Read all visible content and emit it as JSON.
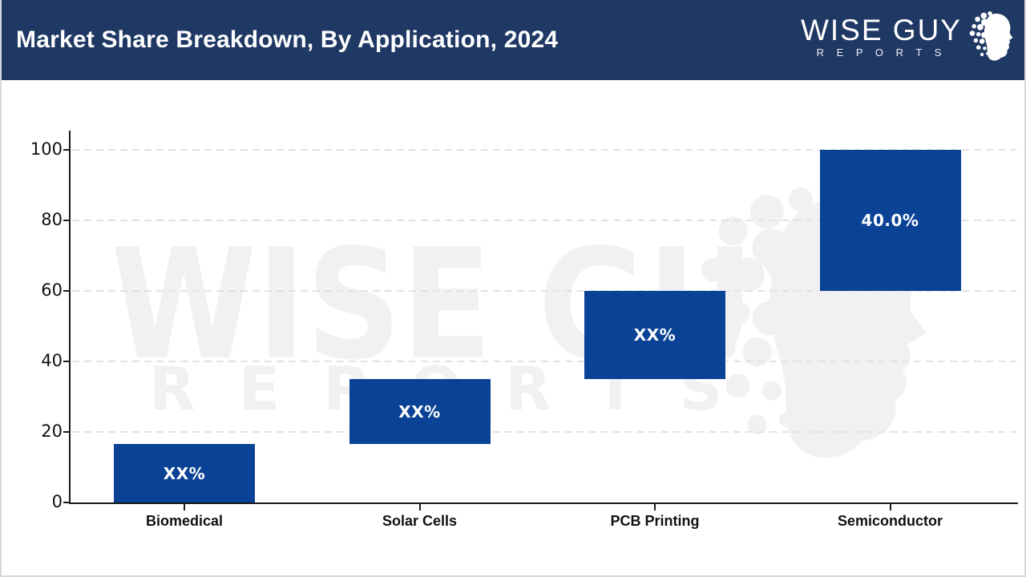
{
  "header": {
    "title": "Market Share Breakdown, By Application, 2024",
    "logo": {
      "line1": "WISE GUY",
      "line2": "R E P O R T S"
    }
  },
  "watermark": {
    "line1": "WISE GUY",
    "line2": "R E P O R T S"
  },
  "colors": {
    "header_bg": "#1f3864",
    "bar": "#0a4296",
    "grid": "#e2e2e2",
    "axis": "#1a1a1a",
    "watermark": "#f1f1f4",
    "bar_label_text": "#ffffff"
  },
  "chart_data": {
    "type": "bar",
    "subtype": "floating-waterfall",
    "title": "Market Share Breakdown, By Application, 2024",
    "categories": [
      "Biomedical",
      "Solar Cells",
      "PCB Printing",
      "Semiconductor"
    ],
    "segments": [
      {
        "category": "Biomedical",
        "start": 0,
        "end": 16.5,
        "label": "XX%"
      },
      {
        "category": "Solar Cells",
        "start": 16.5,
        "end": 35,
        "label": "XX%"
      },
      {
        "category": "PCB Printing",
        "start": 35,
        "end": 60,
        "label": "XX%"
      },
      {
        "category": "Semiconductor",
        "start": 60,
        "end": 100,
        "label": "40.0%"
      }
    ],
    "yticks": [
      0,
      20,
      40,
      60,
      80,
      100
    ],
    "ylim": [
      0,
      105
    ],
    "xlabel": "",
    "ylabel": "",
    "grid": "horizontal-dashed",
    "legend": "none"
  }
}
